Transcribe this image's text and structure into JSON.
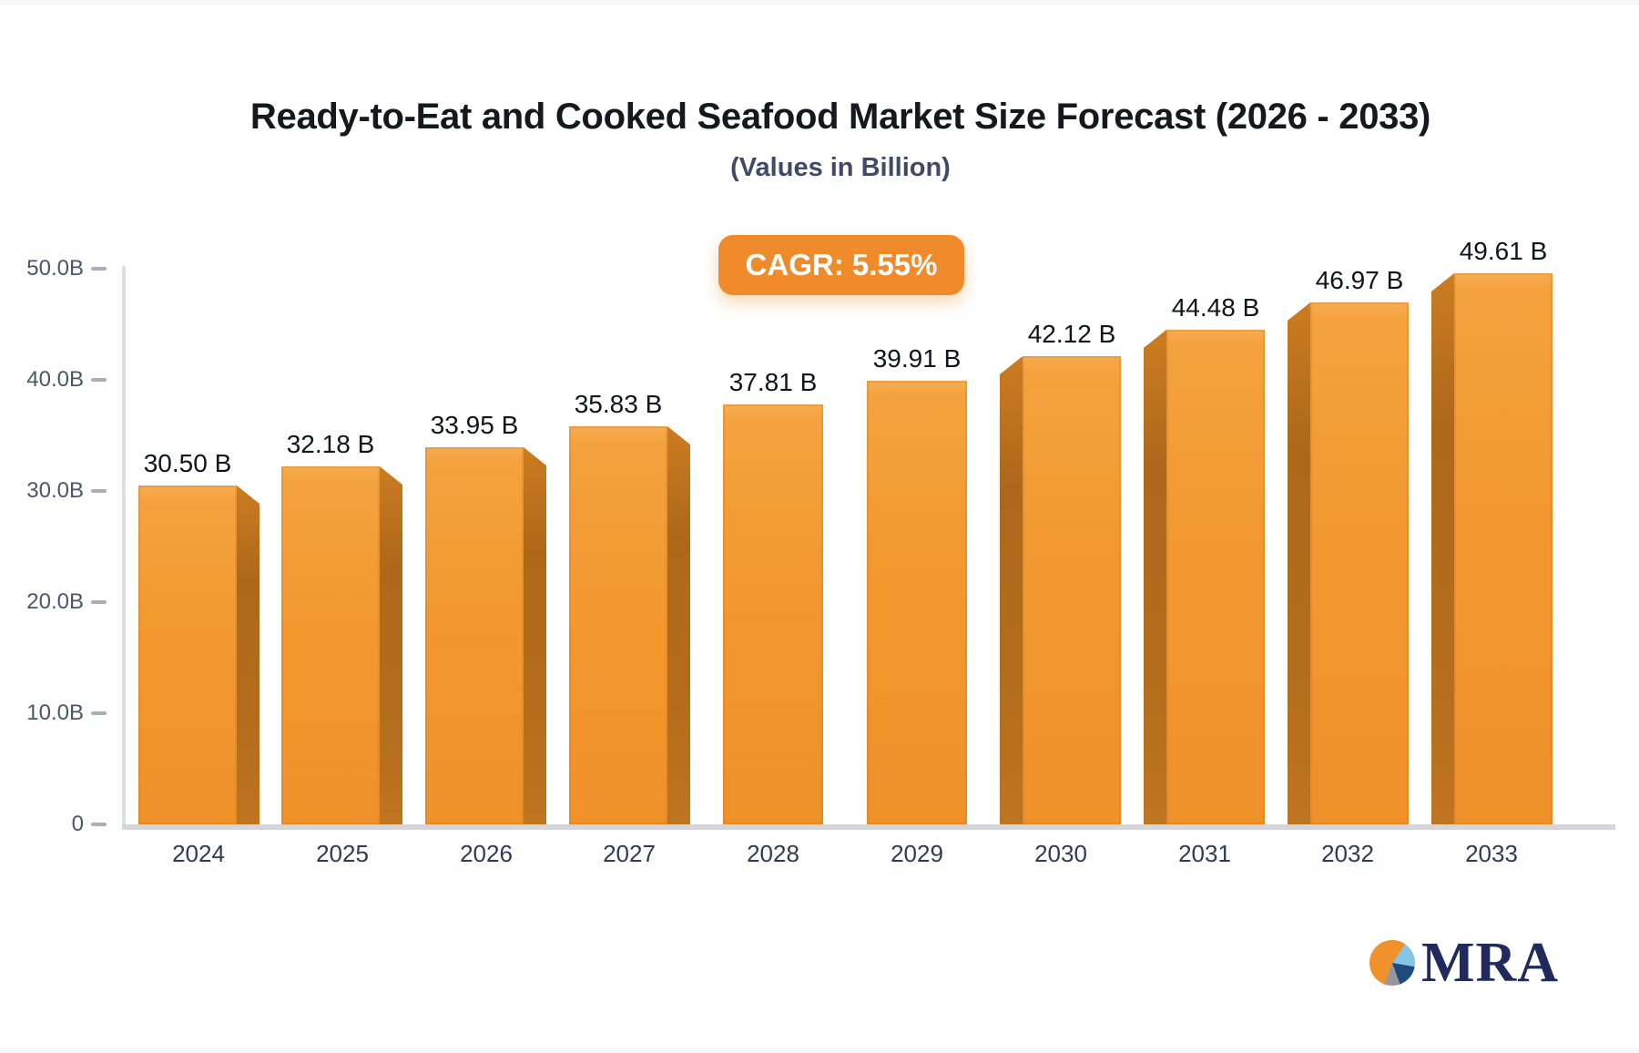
{
  "header": {
    "title": "Ready-to-Eat and Cooked Seafood Market Size Forecast (2026 - 2033)",
    "subtitle": "(Values in Billion)"
  },
  "badge": {
    "label": "CAGR: 5.55%",
    "bg_color": "#F08B2B",
    "text_color": "#FFFFFF"
  },
  "chart_data": {
    "type": "bar",
    "title": "Ready-to-Eat and Cooked Seafood Market Size Forecast (2026 - 2033)",
    "subtitle": "(Values in Billion)",
    "categories": [
      "2024",
      "2025",
      "2026",
      "2027",
      "2028",
      "2029",
      "2030",
      "2031",
      "2032",
      "2033"
    ],
    "values": [
      30.5,
      32.18,
      33.95,
      35.83,
      37.81,
      39.91,
      42.12,
      44.48,
      46.97,
      49.61
    ],
    "value_labels": [
      "30.50 B",
      "32.18 B",
      "33.95 B",
      "35.83 B",
      "37.81 B",
      "39.91 B",
      "42.12 B",
      "44.48 B",
      "46.97 B",
      "49.61 B"
    ],
    "xlabel": "",
    "ylabel": "",
    "ylim": [
      0,
      50
    ],
    "y_tick_labels": [
      "0",
      "10.0B",
      "20.0B",
      "30.0B",
      "40.0B",
      "50.0B"
    ],
    "grid": false,
    "legend_position": "none",
    "annotation": "CAGR: 5.55%",
    "bar_color": "#F2962E",
    "bar_side_color": "#B26C1B"
  },
  "logo": {
    "text": "MRA",
    "pie_colors": [
      "#F0912C",
      "#85C5E8",
      "#1F4A7D",
      "#97979B"
    ]
  }
}
